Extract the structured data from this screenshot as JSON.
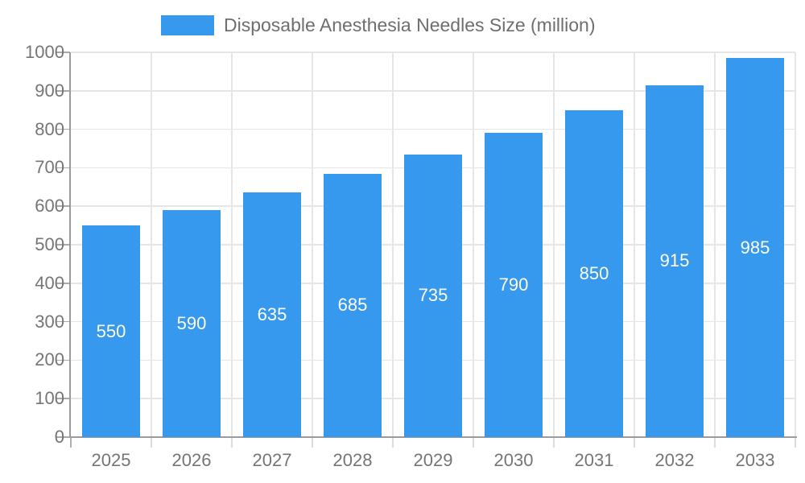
{
  "chart_data": {
    "type": "bar",
    "title": "Disposable Anesthesia Needles Size (million)",
    "categories": [
      "2025",
      "2026",
      "2027",
      "2028",
      "2029",
      "2030",
      "2031",
      "2032",
      "2033"
    ],
    "values": [
      550,
      590,
      635,
      685,
      735,
      790,
      850,
      915,
      985
    ],
    "value_labels": [
      "550",
      "590",
      "635",
      "685",
      "735",
      "790",
      "850",
      "915",
      "985"
    ],
    "xlabel": "",
    "ylabel": "",
    "ylim": [
      0,
      1000
    ],
    "ytick_step": 100,
    "ytick_labels": [
      "0",
      "100",
      "200",
      "300",
      "400",
      "500",
      "600",
      "700",
      "800",
      "900",
      "1000"
    ],
    "grid": "on",
    "legend_position": "top-center",
    "bar_color": "#3799EE",
    "value_label_color": "#FFFFFF",
    "axis_text_color": "#757575",
    "legend_text_color": "#6E6E6E",
    "gridline_color": "#E6E6E6",
    "axis_line_color": "#9B9B9B"
  }
}
